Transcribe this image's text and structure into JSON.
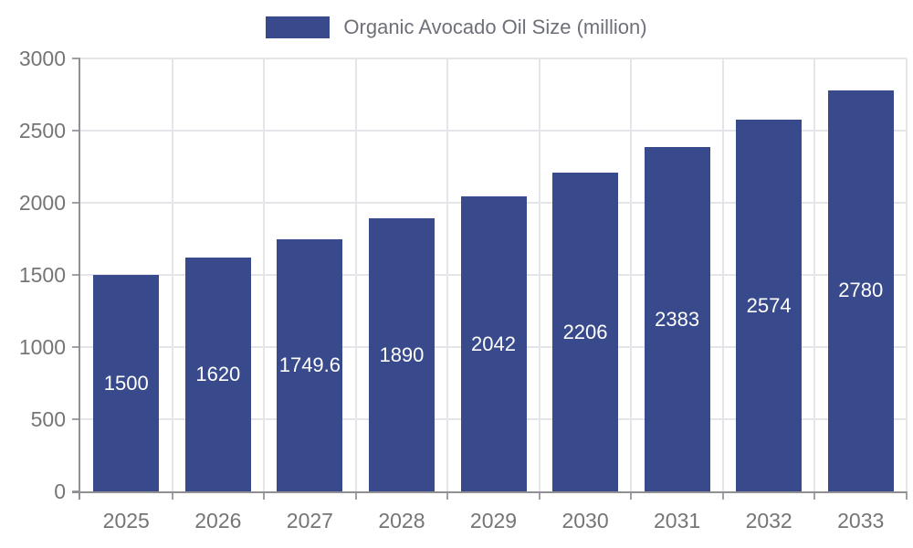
{
  "legend": {
    "label": "Organic Avocado Oil Size (million)",
    "position": "top-center"
  },
  "colors": {
    "bar_fill": "#394A8C",
    "value_label": "#FFFFFF",
    "axis_line": "#8F8F94",
    "tick_mark": "#A0A0A5",
    "grid_line": "#E4E4E9",
    "tick_label": "#757575",
    "legend_text": "#6E7079",
    "background": "#FFFFFF"
  },
  "chart_data": {
    "type": "bar",
    "categories": [
      "2025",
      "2026",
      "2027",
      "2028",
      "2029",
      "2030",
      "2031",
      "2032",
      "2033"
    ],
    "series": [
      {
        "name": "Organic Avocado Oil Size (million)",
        "values": [
          1500,
          1620,
          1749.6,
          1890,
          2042,
          2206,
          2383,
          2574,
          2780
        ]
      }
    ],
    "title": "Organic Avocado Oil Size (million)",
    "xlabel": "",
    "ylabel": "",
    "ylim": [
      0,
      3000
    ],
    "yticks": [
      0,
      500,
      1000,
      1500,
      2000,
      2500,
      3000
    ],
    "grid": true,
    "legend_position": "top",
    "value_label_position": "inside-center"
  }
}
